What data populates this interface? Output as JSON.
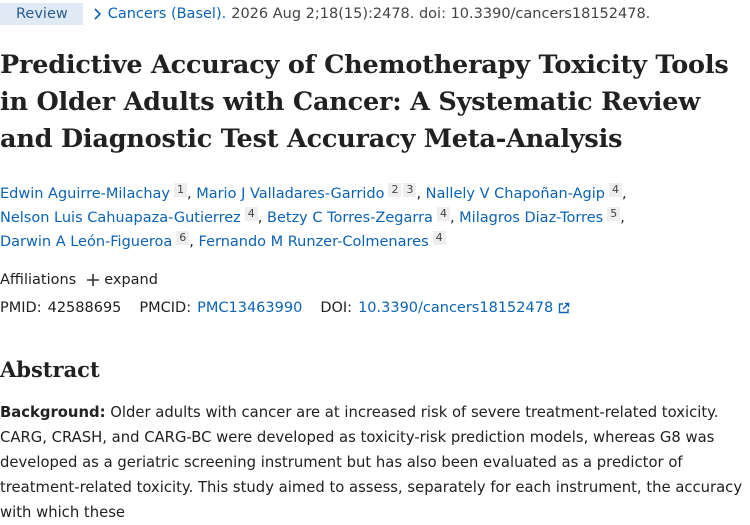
{
  "header": {
    "badge": "Review",
    "journal": "Cancers (Basel).",
    "citation": "2026 Aug 2;18(15):2478. doi: 10.3390/cancers18152478."
  },
  "title_lines": [
    "Predictive Accuracy of Chemotherapy Toxicity Tools",
    "in Older Adults with Cancer: A Systematic Review",
    "and Diagnostic Test Accuracy Meta-Analysis"
  ],
  "author_separator": ",",
  "author_lines": [
    [
      {
        "name": "Edwin Aguirre-Milachay",
        "affiliations": [
          1
        ]
      },
      {
        "name": "Mario J Valladares-Garrido",
        "affiliations": [
          2,
          3
        ]
      },
      {
        "name": "Nallely V Chapoñan-Agip",
        "affiliations": [
          4
        ]
      }
    ],
    [
      {
        "name": "Nelson Luis Cahuapaza-Gutierrez",
        "affiliations": [
          4
        ]
      },
      {
        "name": "Betzy C Torres-Zegarra",
        "affiliations": [
          4
        ]
      },
      {
        "name": "Milagros Diaz-Torres",
        "affiliations": [
          5
        ]
      }
    ],
    [
      {
        "name": "Darwin A León-Figueroa",
        "affiliations": [
          6
        ]
      },
      {
        "name": "Fernando M Runzer-Colmenares",
        "affiliations": [
          4
        ]
      }
    ]
  ],
  "affiliations": {
    "label": "Affiliations",
    "toggle": "expand"
  },
  "identifiers": [
    {
      "label": "PMID:",
      "value": "42588695"
    },
    {
      "label": "PMCID:",
      "value": "PMC13463990"
    },
    {
      "label": "DOI:",
      "value": "10.3390/cancers18152478"
    }
  ],
  "abstract": {
    "heading": "Abstract",
    "sections": [
      {
        "label": "Background:",
        "text": "Older adults with cancer are at increased risk of severe treatment-related toxicity. CARG, CRASH, and CARG-BC were developed as toxicity-risk prediction models, whereas G8 was developed as a geriatric screening instrument but has also been evaluated as a predictor of treatment-related toxicity. This study aimed to assess, separately for each instrument, the accuracy with which these"
      }
    ]
  }
}
